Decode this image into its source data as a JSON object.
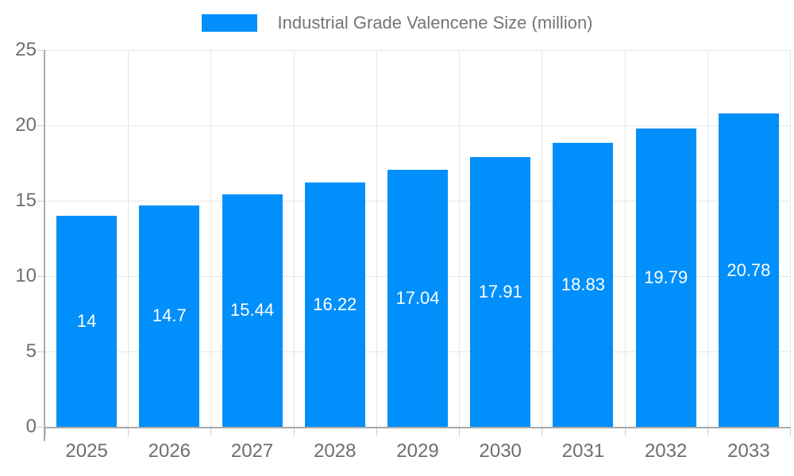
{
  "chart_data": {
    "type": "bar",
    "title": "",
    "categories": [
      "2025",
      "2026",
      "2027",
      "2028",
      "2029",
      "2030",
      "2031",
      "2032",
      "2033"
    ],
    "series": [
      {
        "name": "Industrial Grade Valencene Size (million)",
        "values": [
          14,
          14.7,
          15.44,
          16.22,
          17.04,
          17.91,
          18.83,
          19.79,
          20.78
        ]
      }
    ],
    "value_labels": [
      "14",
      "14.7",
      "15.44",
      "16.22",
      "17.04",
      "17.91",
      "18.83",
      "19.79",
      "20.78"
    ],
    "ylim": [
      0,
      25
    ],
    "ytick_step": 5,
    "ytick_labels": [
      "0",
      "5",
      "10",
      "15",
      "20",
      "25"
    ],
    "grid": "both",
    "legend_position": "top",
    "value_label_position": "center-of-bar",
    "colors": {
      "bar": "#008FFB",
      "axis_text": "#6e6e6e",
      "legend_text": "#757575",
      "grid": "#e6e6e6",
      "axis_line": "#aaaaaa",
      "tick": "#cccccc",
      "value_label": "#ffffff",
      "background": "#ffffff"
    }
  }
}
